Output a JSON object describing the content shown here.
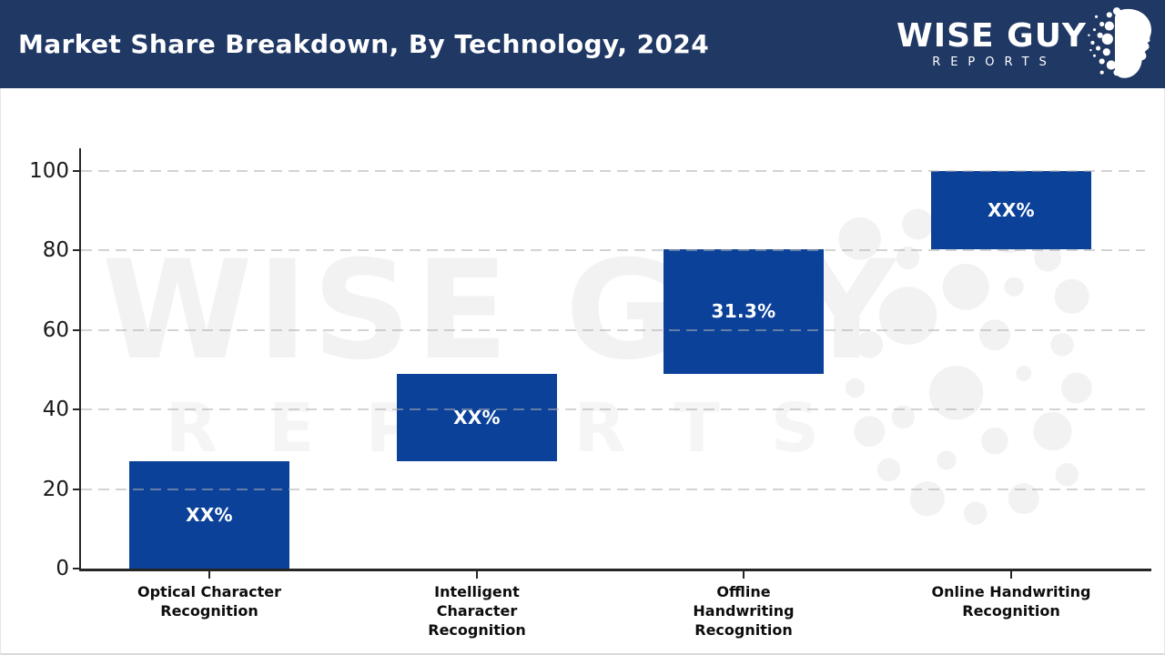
{
  "header": {
    "title": "Market Share Breakdown, By Technology, 2024",
    "logo": {
      "line1": "WISE GUY",
      "line2": "REPORTS"
    }
  },
  "watermark": {
    "line1": "WISE GUY",
    "line2": "REPORTS"
  },
  "colors": {
    "header_bg": "#203864",
    "bar": "#0c4199",
    "axis": "#262626",
    "grid": "#b0b0b0",
    "value_label": "#ffffff",
    "watermark": "#f2f2f2"
  },
  "chart_data": {
    "type": "bar",
    "subtype": "waterfall",
    "title": "Market Share Breakdown, By Technology, 2024",
    "xlabel": "",
    "ylabel": "",
    "ylim": [
      0,
      100
    ],
    "yticks": [
      0,
      20,
      40,
      60,
      80,
      100
    ],
    "grid": "horizontal-dashed",
    "legend": "none",
    "categories": [
      "Optical Character Recognition",
      "Intelligent Character Recognition",
      "Offline Handwriting Recognition",
      "Online Handwriting Recognition"
    ],
    "category_label_lines": [
      [
        "Optical Character",
        "Recognition"
      ],
      [
        "Intelligent",
        "Character",
        "Recognition"
      ],
      [
        "Offline",
        "Handwriting",
        "Recognition"
      ],
      [
        "Online Handwriting",
        "Recognition"
      ]
    ],
    "segments": [
      {
        "category": "Optical Character Recognition",
        "start": 0,
        "end": 27,
        "value_label": "XX%"
      },
      {
        "category": "Intelligent Character Recognition",
        "start": 27,
        "end": 49,
        "value_label": "XX%"
      },
      {
        "category": "Offline Handwriting Recognition",
        "start": 49,
        "end": 80.3,
        "value_label": "31.3%"
      },
      {
        "category": "Online Handwriting Recognition",
        "start": 80.3,
        "end": 100,
        "value_label": "XX%"
      }
    ]
  }
}
